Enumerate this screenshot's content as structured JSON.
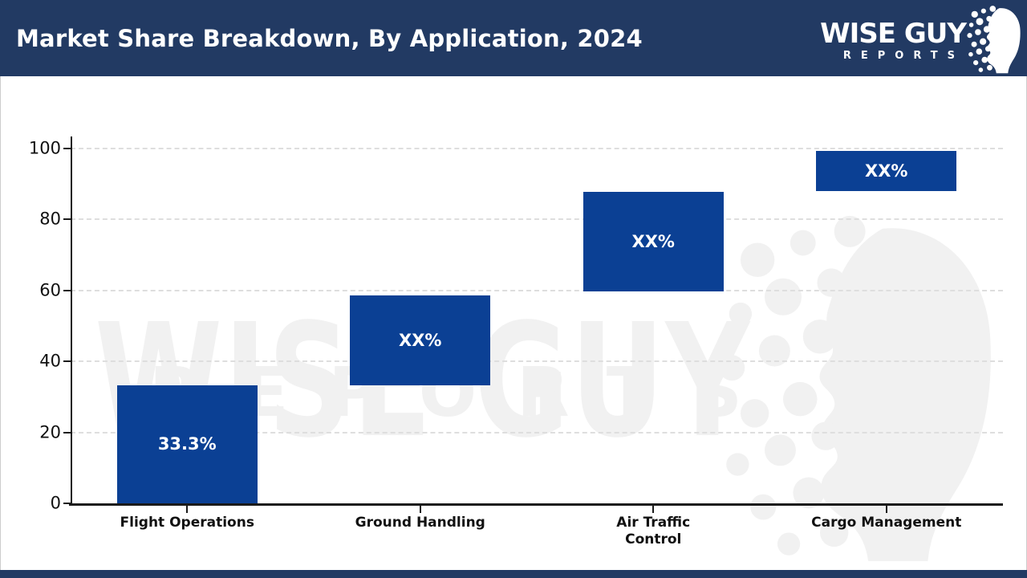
{
  "header": {
    "title": "Market Share Breakdown, By Application, 2024",
    "logo": {
      "line1": "WISE GUY",
      "line2": "REPORTS"
    }
  },
  "watermark": {
    "line1": "WISE GUY",
    "line2": "REPORTS"
  },
  "chart_data": {
    "type": "bar",
    "subtype": "floating-segment-waterfall",
    "title": "Market Share Breakdown, By Application, 2024",
    "categories": [
      "Flight Operations",
      "Ground Handling",
      "Air Traffic Control",
      "Cargo Management"
    ],
    "segments": [
      {
        "category": "Flight Operations",
        "start": 0,
        "end": 33.3,
        "label": "33.3%"
      },
      {
        "category": "Ground Handling",
        "start": 33.3,
        "end": 58.6,
        "label": "XX%"
      },
      {
        "category": "Air Traffic Control",
        "start": 59.7,
        "end": 87.8,
        "label": "XX%"
      },
      {
        "category": "Cargo Management",
        "start": 88.0,
        "end": 99.3,
        "label": "XX%"
      }
    ],
    "yticks": [
      0,
      20,
      40,
      60,
      80,
      100
    ],
    "ylim": [
      0,
      103.5
    ],
    "xlabel": "",
    "ylabel": "",
    "grid": "horizontal-dashed",
    "legend": "none",
    "bar_color": "#0b4094",
    "bar_label_color": "#ffffff"
  },
  "colors": {
    "header_bg": "#223a63",
    "footer_bg": "#223a63",
    "bar": "#0b4094",
    "grid": "#dedede",
    "axis": "#1a1a1a",
    "watermark": "#f1f1f1"
  }
}
